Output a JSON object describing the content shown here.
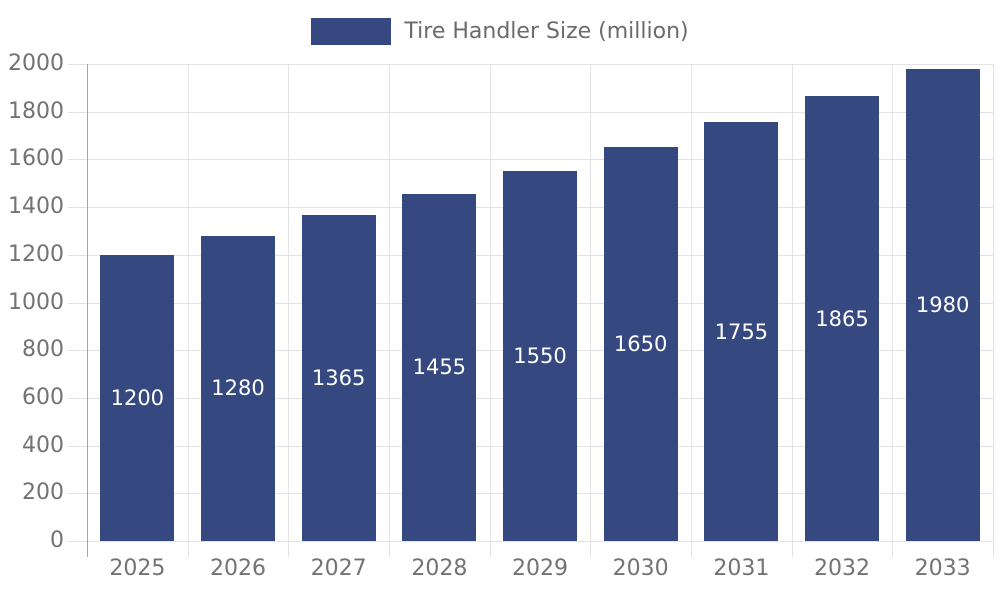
{
  "legend": {
    "label": "Tire Handler Size (million)"
  },
  "colors": {
    "bar": "#354880",
    "grid": "#e3e3e3",
    "axis_line": "#a6a6a6",
    "axis_text": "#737373",
    "legend_text": "#6b6b6b",
    "bar_label_text": "#ffffff",
    "background": "#ffffff"
  },
  "chart_data": {
    "type": "bar",
    "title": "",
    "categories": [
      "2025",
      "2026",
      "2027",
      "2028",
      "2029",
      "2030",
      "2031",
      "2032",
      "2033"
    ],
    "series": [
      {
        "name": "Tire Handler Size (million)",
        "values": [
          1200,
          1280,
          1365,
          1455,
          1550,
          1650,
          1755,
          1865,
          1980
        ]
      }
    ],
    "value_labels": "inside-center",
    "xlabel": "",
    "ylabel": "",
    "ylim": [
      0,
      2000
    ],
    "ytick_step": 200,
    "yticks": [
      0,
      200,
      400,
      600,
      800,
      1000,
      1200,
      1400,
      1600,
      1800,
      2000
    ],
    "grid": "both",
    "legend_position": "top"
  }
}
